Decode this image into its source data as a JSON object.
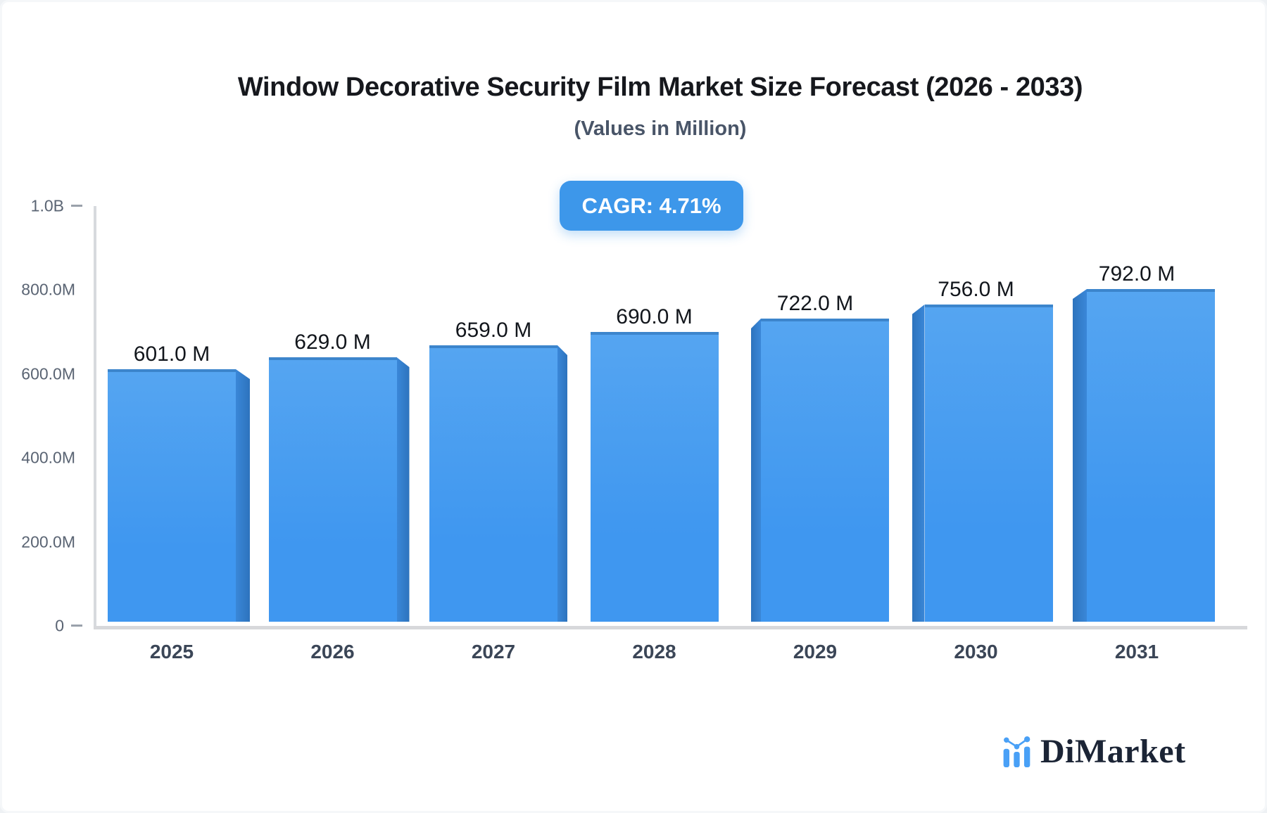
{
  "header": {
    "title": "Window Decorative Security Film Market Size Forecast (2026 - 2033)",
    "subtitle": "(Values in Million)",
    "cagr_badge": "CAGR: 4.71%"
  },
  "chart_data": {
    "type": "bar",
    "title": "Window Decorative Security Film Market Size Forecast (2026 - 2033)",
    "subtitle": "(Values in Million)",
    "unit": "Million",
    "cagr_percent": 4.71,
    "categories": [
      "2025",
      "2026",
      "2027",
      "2028",
      "2029",
      "2030",
      "2031"
    ],
    "values": [
      601,
      629,
      659,
      690,
      722,
      756,
      792
    ],
    "value_labels": [
      "601.0 M",
      "629.0 M",
      "659.0 M",
      "690.0 M",
      "722.0 M",
      "756.0 M",
      "792.0 M"
    ],
    "ylim": [
      0,
      1000
    ],
    "y_ticks": [
      {
        "label": "1.0B",
        "value": 1000,
        "dash": true
      },
      {
        "label": "800.0M",
        "value": 800,
        "dash": false
      },
      {
        "label": "600.0M",
        "value": 600,
        "dash": false
      },
      {
        "label": "400.0M",
        "value": 400,
        "dash": false
      },
      {
        "label": "200.0M",
        "value": 200,
        "dash": false
      },
      {
        "label": "0",
        "value": 0,
        "dash": true
      }
    ],
    "grid": false,
    "legend_position": "none",
    "style": "3d-perspective-bars",
    "colors": {
      "bar_face_top": "#55a5f1",
      "bar_face_bottom": "#3f97f0",
      "bar_side_near": "#3a87d8",
      "bar_side_far": "#2d73bd",
      "bar_top_edge": "#3c85cc",
      "axis_line": "#d7dade",
      "tick_text": "#5a6473",
      "category_text": "#3b4657",
      "value_text": "#12161c",
      "badge_bg": "#3d97ea",
      "badge_text": "#ffffff",
      "logo_blue": "#49a0f6",
      "logo_text": "#1b2435"
    }
  },
  "footer": {
    "brand_name": "DiMarket"
  }
}
